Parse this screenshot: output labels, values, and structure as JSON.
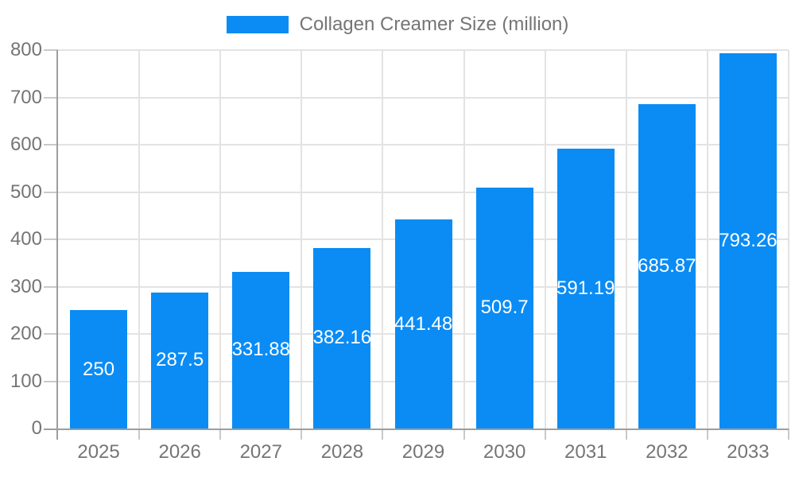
{
  "chart_data": {
    "type": "bar",
    "title": "",
    "legend": {
      "label": "Collagen Creamer Size (million)",
      "position": "top"
    },
    "categories": [
      "2025",
      "2026",
      "2027",
      "2028",
      "2029",
      "2030",
      "2031",
      "2032",
      "2033"
    ],
    "series": [
      {
        "name": "Collagen Creamer Size (million)",
        "values": [
          250,
          287.5,
          331.88,
          382.16,
          441.48,
          509.7,
          591.19,
          685.87,
          793.26
        ]
      }
    ],
    "value_labels": [
      "250",
      "287.5",
      "331.88",
      "382.16",
      "441.48",
      "509.7",
      "591.19",
      "685.87",
      "793.26"
    ],
    "xlabel": "",
    "ylabel": "",
    "ylim": [
      0,
      800
    ],
    "ytick_step": 100,
    "ytick_labels": [
      "0",
      "100",
      "200",
      "300",
      "400",
      "500",
      "600",
      "700",
      "800"
    ],
    "grid": true,
    "value_label_position": "center-of-bar",
    "colors": {
      "bar": "#0a8cf4",
      "value_text": "#ffffff",
      "axis_text": "#757575",
      "legend_text": "#757575",
      "axis_line": "#9e9e9e",
      "gridline": "#e3e3e3",
      "tick": "#c9c9c9",
      "background": "#ffffff"
    }
  }
}
